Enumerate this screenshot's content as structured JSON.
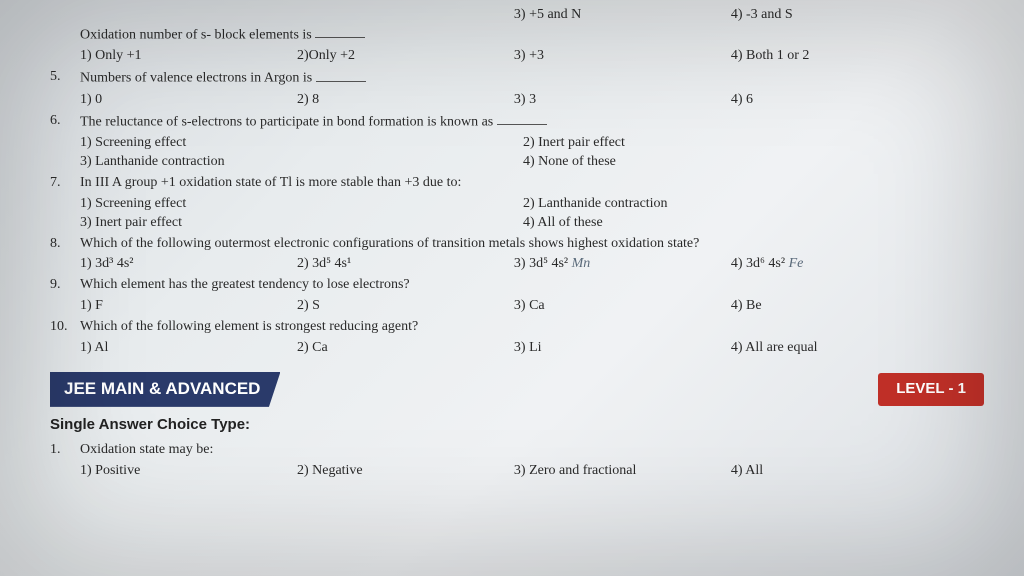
{
  "top_fragment": {
    "opt3": "3) +5 and N",
    "opt4": "4) -3 and S",
    "stem": "Oxidation number of s- block elements is",
    "o1": "1) Only +1",
    "o2": "2)Only +2",
    "o3": "3) +3",
    "o4": "4) Both 1 or 2"
  },
  "q5": {
    "num": "5.",
    "stem": "Numbers of valence electrons in Argon is",
    "o1": "1) 0",
    "o2": "2) 8",
    "o3": "3) 3",
    "o4": "4) 6"
  },
  "q6": {
    "num": "6.",
    "stem_a": "The reluctance of s-electrons to participate in bond formation is known as",
    "o1": "1) Screening effect",
    "o2": "2) Inert pair effect",
    "o3": "3) Lanthanide contraction",
    "o4": "4) None of these"
  },
  "q7": {
    "num": "7.",
    "stem": "In III A group +1 oxidation state of Tl is more stable than +3 due to:",
    "o1": "1) Screening effect",
    "o2": "2) Lanthanide contraction",
    "o3": "3) Inert pair effect",
    "o4": "4) All of these"
  },
  "q8": {
    "num": "8.",
    "stem": "Which of the following outermost electronic configurations of transition metals shows       highest oxidation state?",
    "o1": "1) 3d³ 4s²",
    "o2": "2) 3d⁵ 4s¹",
    "o3": "3) 3d⁵ 4s²",
    "o3_note": "Mn",
    "o4": "4) 3d⁶ 4s²",
    "o4_note": "Fe"
  },
  "q9": {
    "num": "9.",
    "stem": "Which element has the greatest tendency to lose electrons?",
    "o1": "1) F",
    "o2": "2) S",
    "o3": "3) Ca",
    "o4": "4) Be"
  },
  "q10": {
    "num": "10.",
    "stem": "Which of the following element is strongest reducing agent?",
    "o1": "1) Al",
    "o2": "2) Ca",
    "o3": "3) Li",
    "o4": "4) All are equal"
  },
  "banners": {
    "left": "JEE MAIN & ADVANCED",
    "right": "LEVEL - 1"
  },
  "sac": {
    "heading": "Single Answer Choice Type:",
    "q1num": "1.",
    "q1stem": "Oxidation state may be:",
    "q1o1": "1) Positive",
    "q1o2": "2) Negative",
    "q1o3": "3) Zero and fractional",
    "q1o4": "4) All"
  }
}
